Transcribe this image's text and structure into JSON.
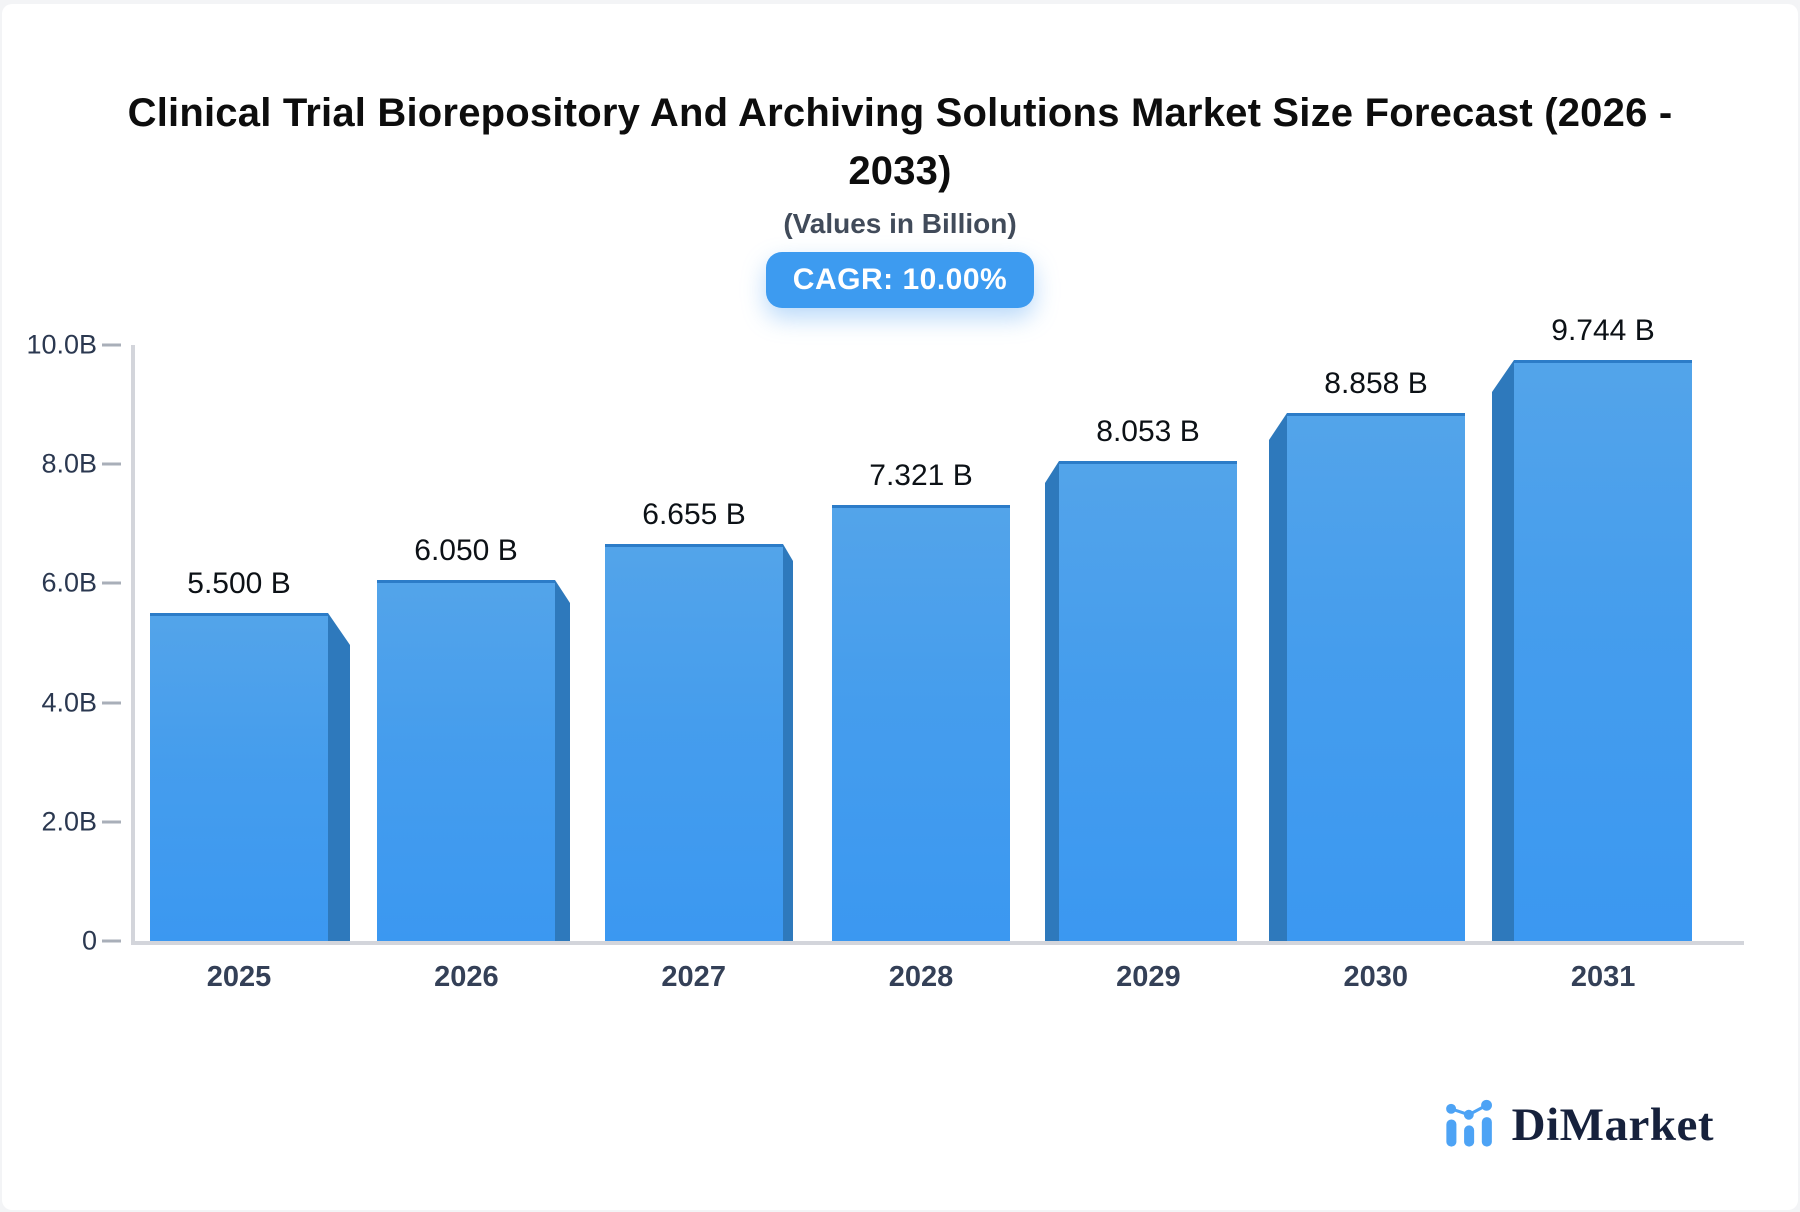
{
  "title": "Clinical Trial Biorepository And Archiving Solutions Market Size Forecast (2026 - 2033)",
  "subtitle": "(Values in Billion)",
  "badge": {
    "label": "CAGR: 10.00%",
    "bg": "#3d9bf0"
  },
  "chart_data": {
    "type": "bar",
    "categories": [
      "2025",
      "2026",
      "2027",
      "2028",
      "2029",
      "2030",
      "2031"
    ],
    "values": [
      5.5,
      6.05,
      6.655,
      7.321,
      8.053,
      8.858,
      9.744
    ],
    "bar_labels": [
      "5.500 B",
      "6.050 B",
      "6.655 B",
      "7.321 B",
      "8.053 B",
      "8.858 B",
      "9.744 B"
    ],
    "title": "Clinical Trial Biorepository And Archiving Solutions Market Size Forecast (2026 - 2033)",
    "xlabel": "",
    "ylabel": "",
    "ylim": [
      0,
      10
    ],
    "y_ticks": [
      {
        "value": 0,
        "label": "0"
      },
      {
        "value": 2,
        "label": "2.0B"
      },
      {
        "value": 4,
        "label": "4.0B"
      },
      {
        "value": 6,
        "label": "6.0B"
      },
      {
        "value": 8,
        "label": "8.0B"
      },
      {
        "value": 10,
        "label": "10.0B"
      }
    ],
    "grid": false,
    "legend": false,
    "bar_color": "#3b98f1",
    "bar_side_color": "#2e79bc"
  },
  "logo": {
    "text": "DiMarket",
    "icon": "bar-chart-logo-icon",
    "icon_color": "#4da3f5"
  }
}
